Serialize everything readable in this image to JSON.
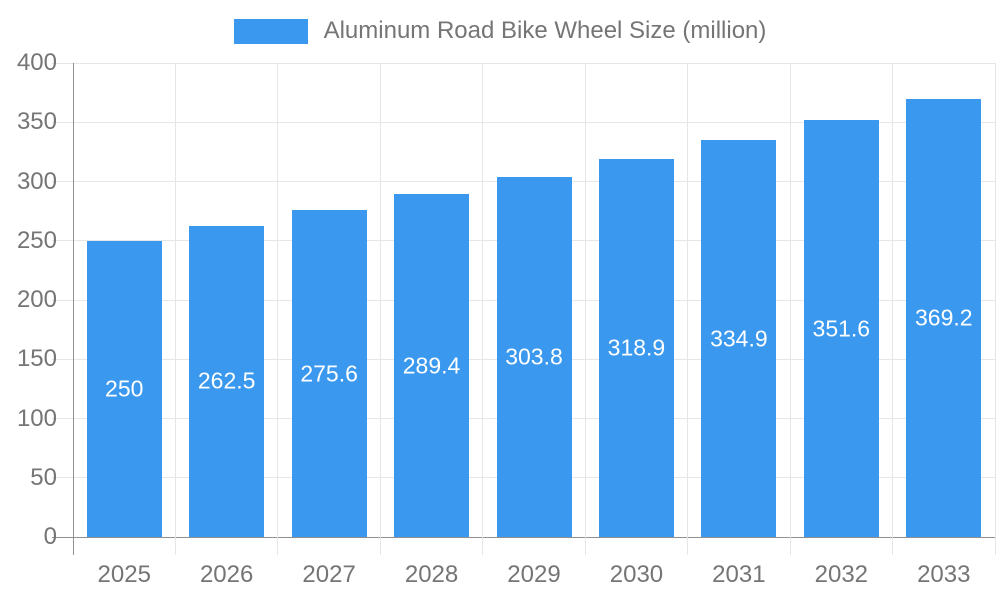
{
  "colors": {
    "bar": "#3a99ee",
    "axis_line": "#919191",
    "gridline": "#e6e6e6",
    "tick_text": "#757575",
    "legend_text": "#757575",
    "value_label_text": "#ffffff",
    "background": "#ffffff"
  },
  "chart_data": {
    "type": "bar",
    "title": "Aluminum Road Bike Wheel Size (million)",
    "legend": [
      "Aluminum Road Bike Wheel Size (million)"
    ],
    "legend_position": "top",
    "categories": [
      "2025",
      "2026",
      "2027",
      "2028",
      "2029",
      "2030",
      "2031",
      "2032",
      "2033"
    ],
    "values": [
      250,
      262.5,
      275.6,
      289.4,
      303.8,
      318.9,
      334.9,
      351.6,
      369.2
    ],
    "value_labels": [
      "250",
      "262.5",
      "275.6",
      "289.4",
      "303.8",
      "318.9",
      "334.9",
      "351.6",
      "369.2"
    ],
    "xlabel": "",
    "ylabel": "",
    "ylim": [
      0,
      400
    ],
    "y_ticks": [
      0,
      50,
      100,
      150,
      200,
      250,
      300,
      350,
      400
    ],
    "grid": true,
    "value_labels_inside_bars": true
  }
}
